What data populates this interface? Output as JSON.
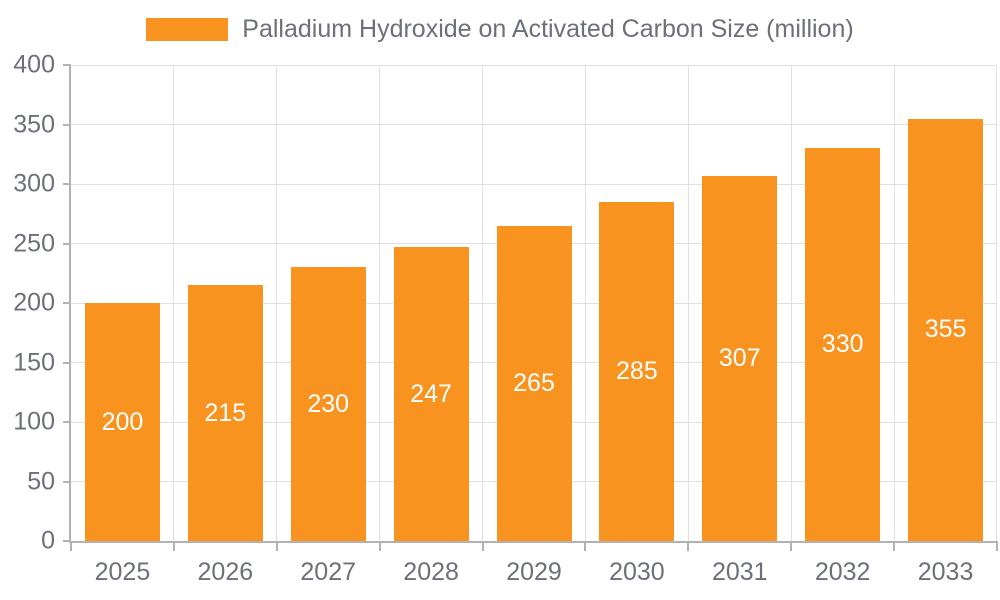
{
  "chart_data": {
    "type": "bar",
    "title": "Palladium Hydroxide on Activated Carbon Size (million)",
    "legend_entries": [
      "Palladium Hydroxide on Activated Carbon Size (million)"
    ],
    "legend_position": "top-center",
    "categories": [
      "2025",
      "2026",
      "2027",
      "2028",
      "2029",
      "2030",
      "2031",
      "2032",
      "2033"
    ],
    "values": [
      200,
      215,
      230,
      247,
      265,
      285,
      307,
      330,
      355
    ],
    "value_labels_shown": true,
    "xlabel": "",
    "ylabel": "",
    "ylim": [
      0,
      400
    ],
    "yticks": [
      0,
      50,
      100,
      150,
      200,
      250,
      300,
      350,
      400
    ],
    "grid": "horizontal and vertical light gray lines",
    "colors": {
      "bar": "#f7931e",
      "value_label": "#ffffff",
      "axis_text": "#6e7079",
      "grid_line": "#e0e0e0",
      "axis_line": "#b2b2b2",
      "background": "#ffffff"
    }
  }
}
